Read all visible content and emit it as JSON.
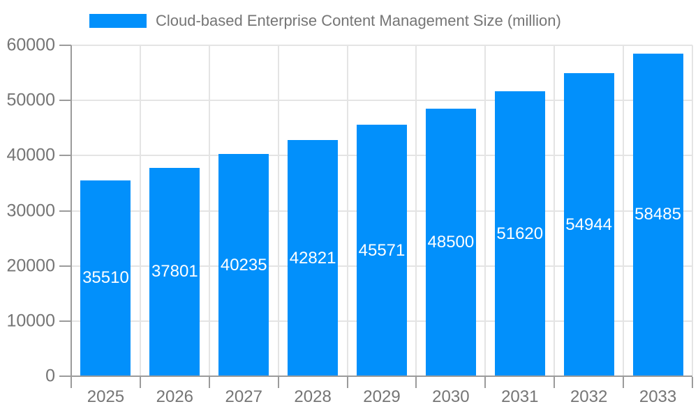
{
  "chart_data": {
    "type": "bar",
    "title": "Cloud-based Enterprise Content Management Size (million)",
    "categories": [
      "2025",
      "2026",
      "2027",
      "2028",
      "2029",
      "2030",
      "2031",
      "2032",
      "2033"
    ],
    "values": [
      35510,
      37801,
      40235,
      42821,
      45571,
      48500,
      51620,
      54944,
      58485
    ],
    "value_labels": [
      "35510",
      "37801",
      "40235",
      "42821",
      "45571",
      "48500",
      "51620",
      "54944",
      "58485"
    ],
    "ylim": [
      0,
      60000
    ],
    "yticks": [
      "0",
      "10000",
      "20000",
      "30000",
      "40000",
      "50000",
      "60000"
    ],
    "grid": true,
    "legend_position": "top-left",
    "colors": {
      "bar": "#0290fb",
      "value_label": "#ffffff",
      "axis_text": "#757575",
      "grid_line": "#e4e4e4",
      "axis_line": "#9b9b9b",
      "background": "#ffffff"
    }
  }
}
